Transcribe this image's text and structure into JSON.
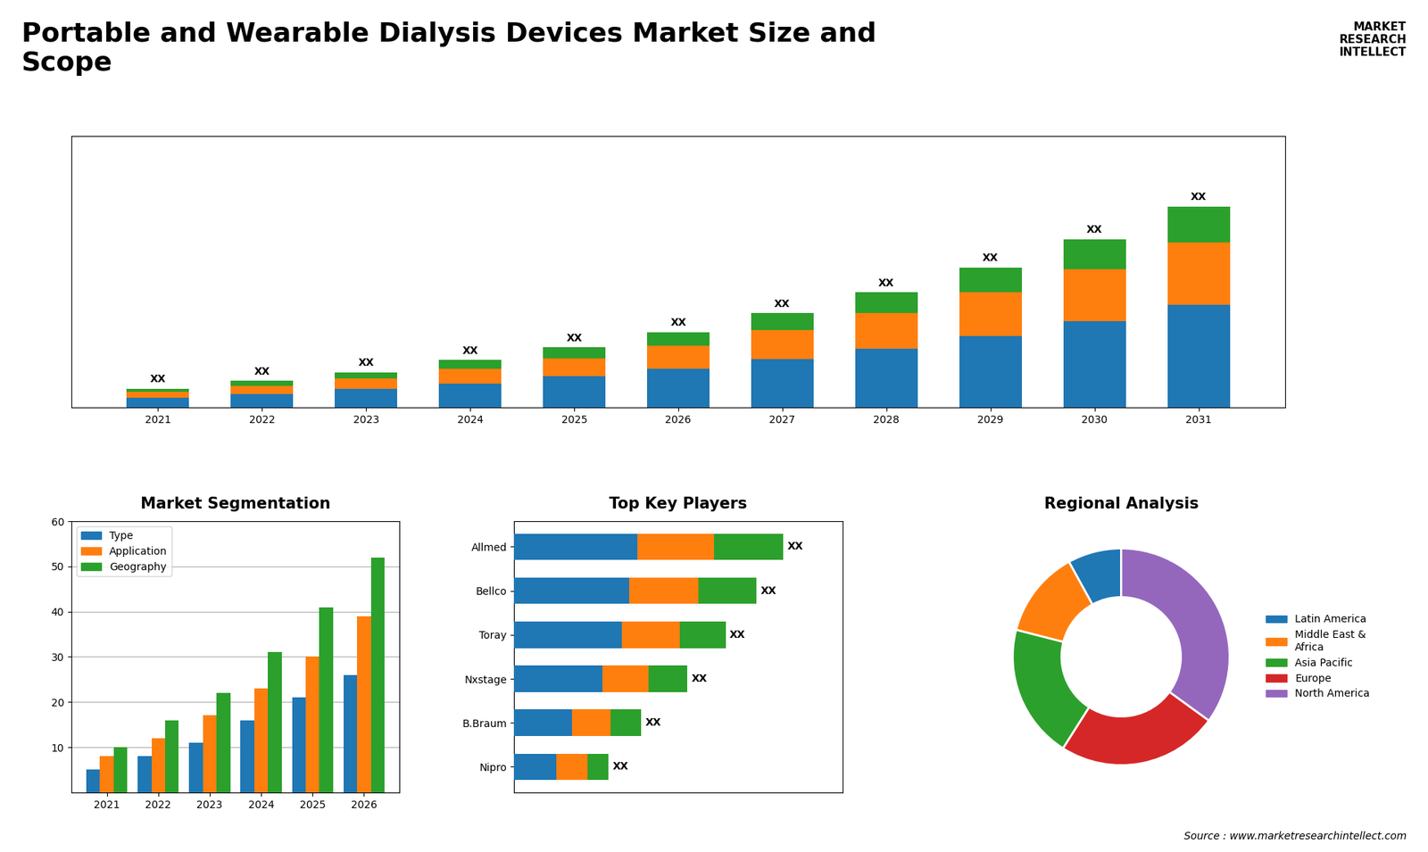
{
  "title": "Portable and Wearable Dialysis Devices Market Size and\nScope",
  "annotations": [
    "MARKET\nRESEARCH\nINTELLECT",
    "Source : www.marketresearchintellect.com"
  ],
  "chart_data": [
    {
      "type": "bar",
      "stacked": true,
      "categories": [
        "2021",
        "2022",
        "2023",
        "2024",
        "2025",
        "2026",
        "2027",
        "2028",
        "2029",
        "2030",
        "2031"
      ],
      "series": [
        {
          "values": [
            1.0,
            1.4,
            1.9,
            2.5,
            3.2,
            4.0,
            5.0,
            6.1,
            7.4,
            8.9,
            10.6
          ]
        },
        {
          "values": [
            0.6,
            0.85,
            1.1,
            1.5,
            1.9,
            2.4,
            3.0,
            3.7,
            4.5,
            5.4,
            6.5
          ]
        },
        {
          "values": [
            0.35,
            0.5,
            0.65,
            0.9,
            1.1,
            1.4,
            1.75,
            2.1,
            2.6,
            3.1,
            3.7
          ]
        }
      ],
      "data_labels": true,
      "value_labels": [
        "XX",
        "XX",
        "XX",
        "XX",
        "XX",
        "XX",
        "XX",
        "XX",
        "XX",
        "XX",
        "XX"
      ],
      "ylim": [
        0,
        28.08
      ],
      "yticks": [],
      "tick_labels": "x"
    },
    {
      "type": "bar",
      "title": "Market Segmentation",
      "categories": [
        "2021",
        "2022",
        "2023",
        "2024",
        "2025",
        "2026"
      ],
      "series": [
        {
          "name": "Type",
          "values": [
            5,
            8,
            11,
            16,
            21,
            26
          ]
        },
        {
          "name": "Application",
          "values": [
            8,
            12,
            17,
            23,
            30,
            39
          ]
        },
        {
          "name": "Geography",
          "values": [
            10,
            16,
            22,
            31,
            41,
            52
          ]
        }
      ],
      "ylim": [
        0,
        60
      ],
      "yticks": [
        10,
        20,
        30,
        40,
        50,
        60
      ],
      "grid": true,
      "legend": "upper left"
    },
    {
      "type": "bar",
      "title": "Top Key Players",
      "orientation": "horizontal",
      "stacked": true,
      "categories": [
        "Allmed",
        "Bellco",
        "Toray",
        "Nxstage",
        "B.Braum",
        "Nipro"
      ],
      "series": [
        {
          "values": [
            3.2,
            3.0,
            2.8,
            2.3,
            1.5,
            1.1
          ]
        },
        {
          "values": [
            2.0,
            1.8,
            1.5,
            1.2,
            1.0,
            0.8
          ]
        },
        {
          "values": [
            1.8,
            1.5,
            1.2,
            1.0,
            0.8,
            0.55
          ]
        }
      ],
      "data_labels": true,
      "value_labels": [
        "XX",
        "XX",
        "XX",
        "XX",
        "XX",
        "XX"
      ],
      "xlim": [
        0,
        8.54
      ],
      "xticks": [],
      "tick_labels": "y"
    },
    {
      "type": "donut",
      "title": "Regional Analysis",
      "categories": [
        "Latin America",
        "Middle East &\nAfrica",
        "Asia Pacific",
        "Europe",
        "North America"
      ],
      "values": [
        8,
        13,
        20,
        24,
        35
      ],
      "legend": "center left"
    }
  ]
}
